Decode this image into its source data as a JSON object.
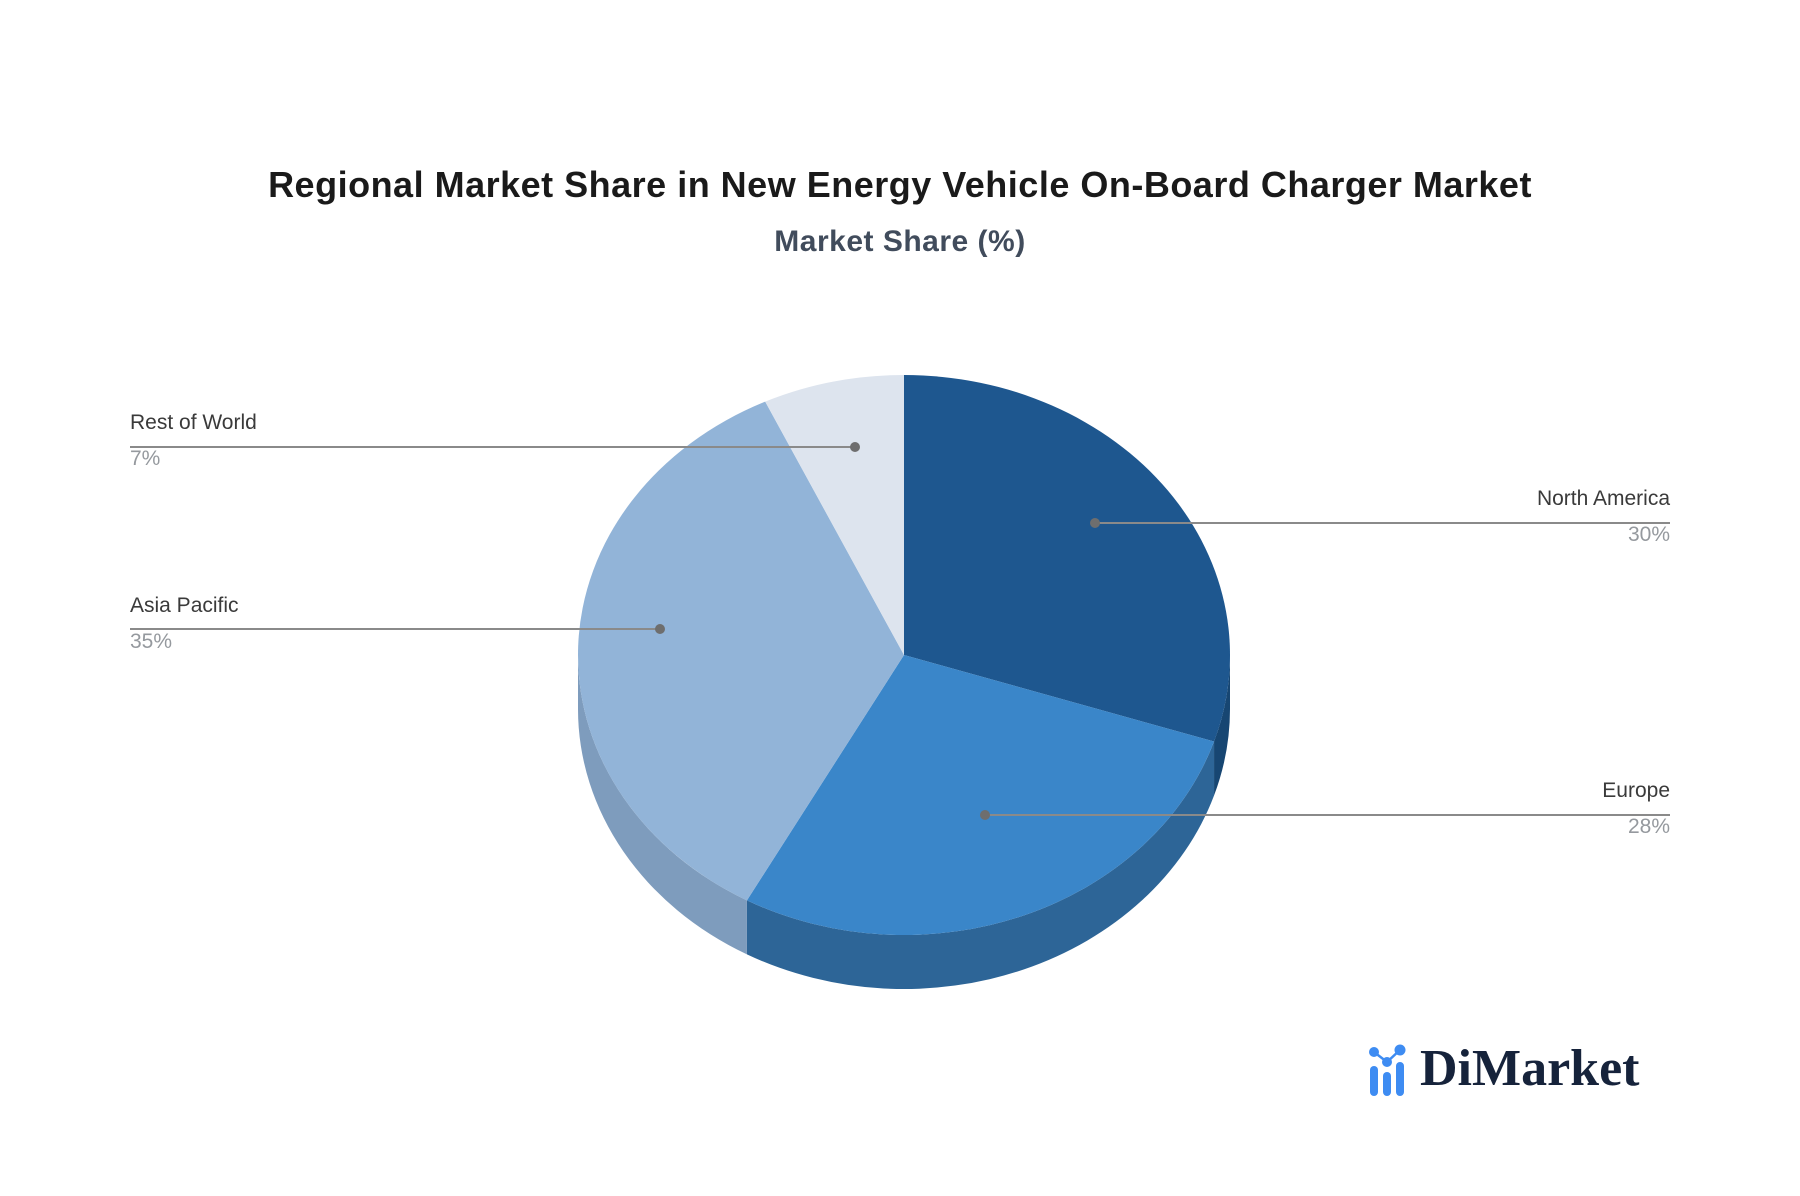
{
  "header": {
    "title": "Regional Market Share in New Energy Vehicle On-Board Charger Market",
    "subtitle": "Market Share (%)"
  },
  "chart_data": {
    "type": "pie",
    "title": "Regional Market Share in New Energy Vehicle On-Board Charger Market",
    "subtitle": "Market Share (%)",
    "unit": "%",
    "effect": "3d",
    "start_angle_deg": 90,
    "direction": "clockwise",
    "legend_position": "callout-labels",
    "segments": [
      {
        "name": "North America",
        "value": 30,
        "pct_label": "30%",
        "color": "#1E578F",
        "side_color": "#174672",
        "label_side": "right"
      },
      {
        "name": "Europe",
        "value": 28,
        "pct_label": "28%",
        "color": "#3A86C9",
        "side_color": "#2D6597",
        "label_side": "right"
      },
      {
        "name": "Asia Pacific",
        "value": 35,
        "pct_label": "35%",
        "color": "#92B4D8",
        "side_color": "#7E9CBD",
        "label_side": "left"
      },
      {
        "name": "Rest of World",
        "value": 7,
        "pct_label": "7%",
        "color": "#DDE4EE",
        "side_color": "#C3CEDD",
        "label_side": "left"
      }
    ],
    "leader_line_color": "#8A8A8A",
    "dot_color": "#6E6E6E"
  },
  "branding": {
    "name": "DiMarket",
    "icon": "bar-line-chart-icon",
    "icon_color": "#3E8CF2",
    "text_color": "#16233B"
  }
}
